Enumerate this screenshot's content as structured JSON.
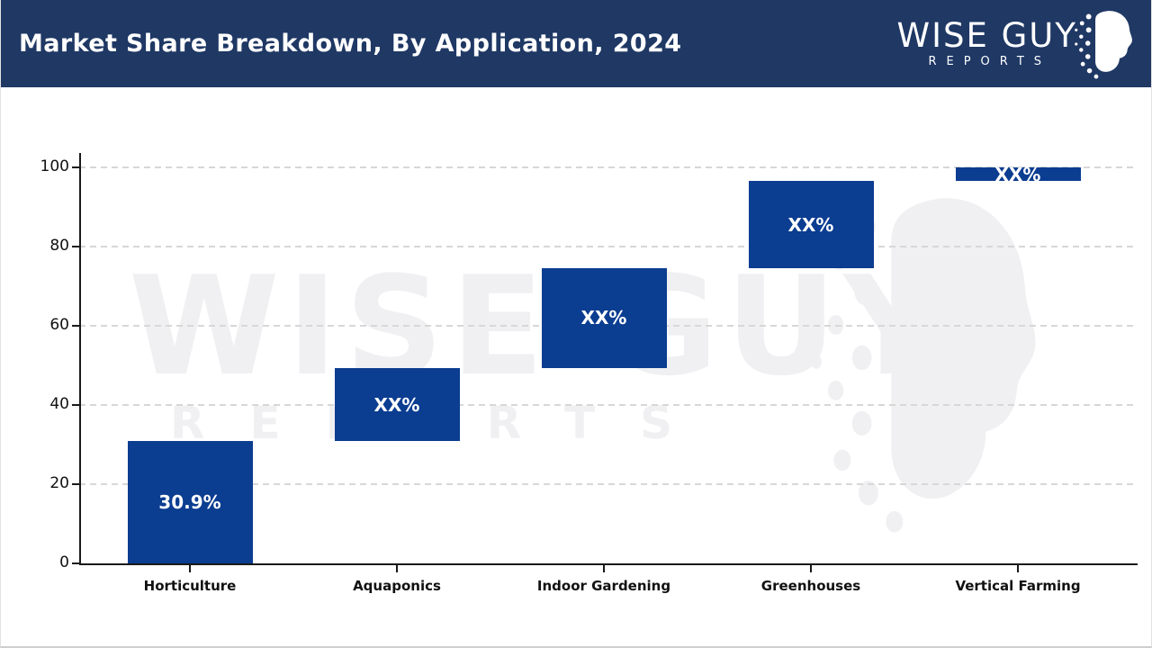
{
  "header": {
    "title": "Market Share Breakdown, By Application, 2024",
    "logo": {
      "line1": "WISE GUY",
      "line2": "REPORTS"
    }
  },
  "watermark": {
    "line1": "WISE GUY",
    "line2": "REPORTS"
  },
  "colors": {
    "header_bg": "#1f3864",
    "bar": "#0b3d91",
    "axis": "#1a1a1a",
    "grid": "#d7d7d7",
    "bar_label": "#ffffff",
    "watermark": "#f0f0f2"
  },
  "chart_data": {
    "type": "bar",
    "subtype": "waterfall",
    "title": "Market Share Breakdown, By Application, 2024",
    "xlabel": "",
    "ylabel": "",
    "ylim": [
      0,
      100
    ],
    "yticks": [
      0,
      20,
      40,
      60,
      80,
      100
    ],
    "grid": "horizontal-dashed",
    "categories": [
      "Horticulture",
      "Aquaponics",
      "Indoor Gardening",
      "Greenhouses",
      "Vertical Farming"
    ],
    "segments": [
      {
        "category": "Horticulture",
        "start": 0,
        "end": 30.9,
        "label": "30.9%"
      },
      {
        "category": "Aquaponics",
        "start": 30.9,
        "end": 49.3,
        "label": "XX%"
      },
      {
        "category": "Indoor Gardening",
        "start": 49.3,
        "end": 74.6,
        "label": "XX%"
      },
      {
        "category": "Greenhouses",
        "start": 74.6,
        "end": 96.5,
        "label": "XX%"
      },
      {
        "category": "Vertical Farming",
        "start": 96.5,
        "end": 100,
        "label": "XX%"
      }
    ]
  }
}
